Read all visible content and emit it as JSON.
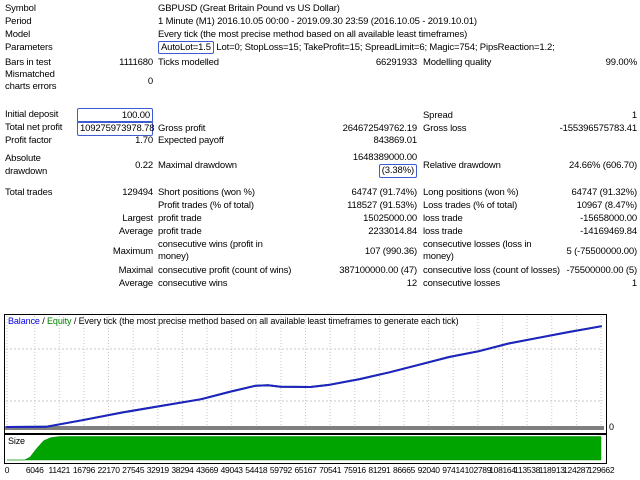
{
  "report": {
    "symbol_label": "Symbol",
    "symbol": "GBPUSD (Great Britain Pound vs US Dollar)",
    "period_label": "Period",
    "period": "1 Minute (M1) 2016.10.05 00:00 - 2019.09.30 23:59 (2016.10.05 - 2019.10.01)",
    "model_label": "Model",
    "model": "Every tick (the most precise method based on all available least timeframes)",
    "parameters_label": "Parameters",
    "parameters_highlight": "AutoLot=1.5",
    "parameters_rest": " Lot=0; StopLoss=15; TakeProfit=15; SpreadLimit=6; Magic=754; PipsReaction=1.2;",
    "bars_label": "Bars in test",
    "bars": "1111680",
    "ticks_label": "Ticks modelled",
    "ticks": "66291933",
    "quality_label": "Modelling quality",
    "quality": "99.00%",
    "mismatch_label": "Mismatched charts errors",
    "mismatch": "0",
    "deposit_label": "Initial deposit",
    "deposit": "100.00",
    "spread_label": "Spread",
    "spread": "1",
    "netprofit_label": "Total net profit",
    "netprofit": "109275973978.78",
    "grossprofit_label": "Gross profit",
    "grossprofit": "264672549762.19",
    "grossloss_label": "Gross loss",
    "grossloss": "-155396575783.41",
    "pf_label": "Profit factor",
    "pf": "1.70",
    "payoff_label": "Expected payoff",
    "payoff": "843869.01",
    "absdd_label": "Absolute drawdown",
    "absdd": "0.22",
    "maxdd_label": "Maximal drawdown",
    "maxdd": "1648389000.00",
    "maxdd_pct": "(3.38%)",
    "reldd_label": "Relative drawdown",
    "reldd": "24.66% (606.70)",
    "trades_label": "Total trades",
    "trades": "129494",
    "short_label": "Short positions (won %)",
    "short": "64747 (91.74%)",
    "long_label": "Long positions (won %)",
    "long": "64747 (91.32%)",
    "profittrades_label": "Profit trades (% of total)",
    "profittrades": "118527 (91.53%)",
    "losstrades_label": "Loss trades (% of total)",
    "losstrades": "10967 (8.47%)",
    "largest_label": "Largest",
    "largest_profit_label": "profit trade",
    "largest_profit": "15025000.00",
    "largest_loss_label": "loss trade",
    "largest_loss": "-15658000.00",
    "avg_label": "Average",
    "avg_profit_label": "profit trade",
    "avg_profit": "2233014.84",
    "avg_loss_label": "loss trade",
    "avg_loss": "-14169469.84",
    "max_label": "Maximum",
    "maxwins_label": "consecutive wins (profit in money)",
    "maxwins": "107 (990.36)",
    "maxlosses_label": "consecutive losses (loss in money)",
    "maxlosses": "5 (-75500000.00)",
    "maximal_label": "Maximal",
    "consprofit_label": "consecutive profit (count of wins)",
    "consprofit": "387100000.00 (47)",
    "consloss_label": "consecutive loss (count of losses)",
    "consloss": "-75500000.00 (5)",
    "avgcons_label": "Average",
    "avgwins_label": "consecutive wins",
    "avgwins": "12",
    "avglosses_label": "consecutive losses",
    "avglosses": "1",
    "highlight_color": "#3f5bd0"
  },
  "chart": {
    "legend": {
      "balance": "Balance",
      "sep1": " / ",
      "equity": "Equity",
      "sep2": " / ",
      "description": "Every tick (the most precise method based on all available least timeframes to generate each tick)"
    },
    "zero_label": "0",
    "size_label": "Size",
    "balance_color": "#2121c8",
    "equity_color": "#008000",
    "size_fill_color": "#00a400"
  },
  "chart_data": {
    "type": "line",
    "title": "Balance / Equity / Every tick (the most precise method based on all available least timeframes to generate each tick)",
    "xlabel_ticks": [
      0,
      6046,
      11421,
      16796,
      22170,
      27545,
      32919,
      38294,
      43669,
      49043,
      54418,
      59792,
      65167,
      70541,
      75916,
      81291,
      86665,
      92040,
      97414,
      102789,
      108164,
      113538,
      118913,
      124287,
      129662
    ],
    "x_range": [
      0,
      129662
    ],
    "y_range_displayed": [
      0,
      115000000000
    ],
    "y_axis_labels": [
      "0"
    ],
    "grid": true,
    "legend_position": "top-left",
    "series": [
      {
        "name": "Balance",
        "color": "#2121c8",
        "estimated_from_pixels": true,
        "points": [
          [
            0,
            100
          ],
          [
            8500,
            250000000
          ],
          [
            16300,
            7300000000
          ],
          [
            25000,
            15600000000
          ],
          [
            33700,
            22900000000
          ],
          [
            42400,
            30200000000
          ],
          [
            48900,
            38500000000
          ],
          [
            54300,
            44800000000
          ],
          [
            57000,
            45200000000
          ],
          [
            59700,
            43700000000
          ],
          [
            66200,
            43400000000
          ],
          [
            70500,
            45900000000
          ],
          [
            77000,
            52000000000
          ],
          [
            83500,
            59300000000
          ],
          [
            90000,
            67600000000
          ],
          [
            96500,
            75900000000
          ],
          [
            103000,
            82200000000
          ],
          [
            109500,
            90600000000
          ],
          [
            116000,
            96800000000
          ],
          [
            122500,
            103000000000
          ],
          [
            129662,
            109276000000
          ]
        ]
      },
      {
        "name": "Equity",
        "color": "#008000",
        "estimated_from_pixels": true,
        "same_as": "Balance",
        "points": [
          [
            0,
            100
          ],
          [
            8500,
            250000000
          ],
          [
            16300,
            7300000000
          ],
          [
            25000,
            15600000000
          ],
          [
            33700,
            22900000000
          ],
          [
            42400,
            30200000000
          ],
          [
            48900,
            38500000000
          ],
          [
            54300,
            44800000000
          ],
          [
            57000,
            45200000000
          ],
          [
            59700,
            43700000000
          ],
          [
            66200,
            43400000000
          ],
          [
            70500,
            45900000000
          ],
          [
            77000,
            52000000000
          ],
          [
            83500,
            59300000000
          ],
          [
            90000,
            67600000000
          ],
          [
            96500,
            75900000000
          ],
          [
            103000,
            82200000000
          ],
          [
            109500,
            90600000000
          ],
          [
            116000,
            96800000000
          ],
          [
            122500,
            103000000000
          ],
          [
            129662,
            109276000000
          ]
        ]
      }
    ],
    "subchart": {
      "name": "Size",
      "type": "area",
      "fill_color": "#00a400",
      "y_normalized": true,
      "points": [
        [
          0,
          0
        ],
        [
          3800,
          0
        ],
        [
          5000,
          0.12
        ],
        [
          6500,
          0.5
        ],
        [
          8000,
          0.82
        ],
        [
          9500,
          0.95
        ],
        [
          11400,
          1
        ],
        [
          129662,
          1
        ]
      ]
    }
  }
}
